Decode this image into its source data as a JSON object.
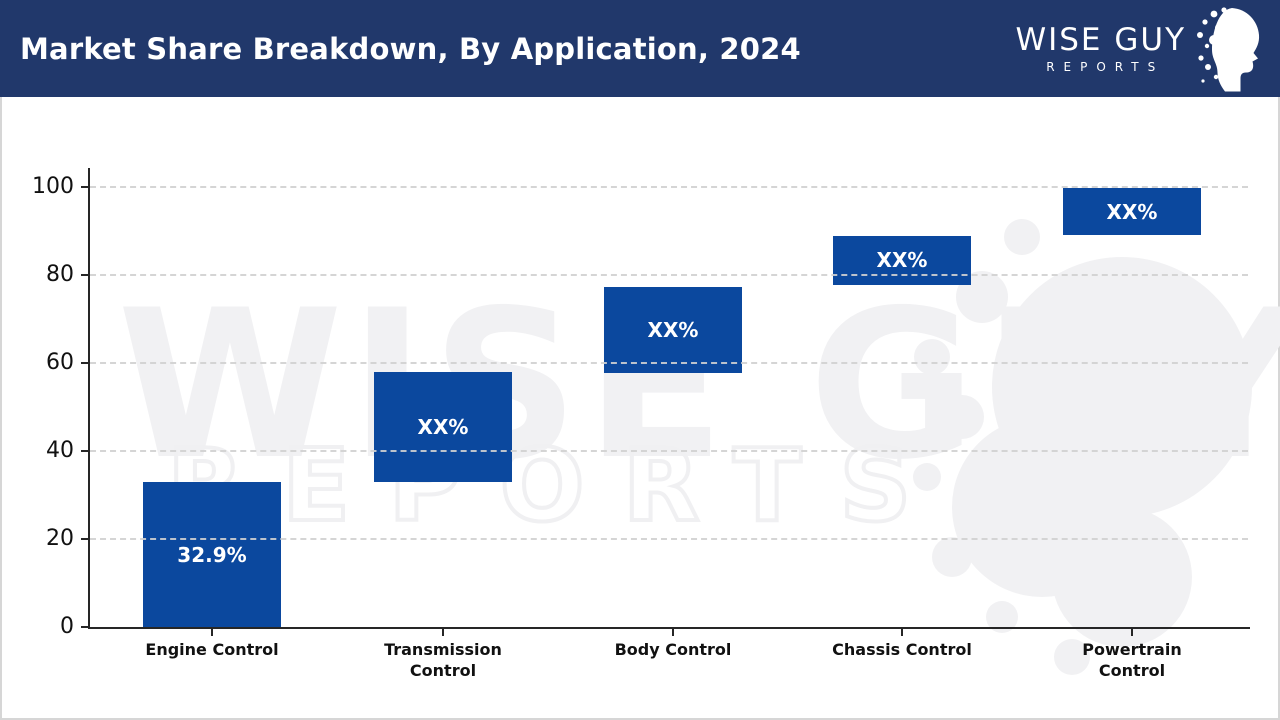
{
  "header": {
    "title": "Market Share Breakdown, By Application, 2024",
    "background_color": "#21386b",
    "logo": {
      "line1": "WISE GUY",
      "line2": "REPORTS",
      "head_icon": "dotted-head-profile"
    }
  },
  "watermark": {
    "line1": "WISE GUY",
    "line2": "REPORTS",
    "color": "#f1f1f3"
  },
  "chart_data": {
    "type": "bar",
    "subtype": "waterfall",
    "title": "Market Share Breakdown, By Application, 2024",
    "xlabel": "",
    "ylabel": "",
    "categories": [
      "Engine Control",
      "Transmission Control",
      "Body Control",
      "Chassis Control",
      "Powertrain Control"
    ],
    "segments": [
      {
        "category": "Engine Control",
        "start": 0,
        "end": 32.9,
        "label": "32.9%"
      },
      {
        "category": "Transmission Control",
        "start": 33,
        "end": 58,
        "label": "XX%"
      },
      {
        "category": "Body Control",
        "start": 57.7,
        "end": 77.3,
        "label": "XX%"
      },
      {
        "category": "Chassis Control",
        "start": 77.7,
        "end": 88.9,
        "label": "XX%"
      },
      {
        "category": "Powertrain Control",
        "start": 89,
        "end": 99.8,
        "label": "XX%"
      }
    ],
    "yticks": [
      0,
      20,
      40,
      60,
      80,
      100
    ],
    "ylim": [
      0,
      104
    ],
    "grid": true,
    "grid_style": "dashed",
    "gridline_color": "#d9d9d9",
    "legend": "none",
    "bar_color": "#0b489e",
    "bar_label_color": "#ffffff",
    "axis_color": "#262626"
  }
}
